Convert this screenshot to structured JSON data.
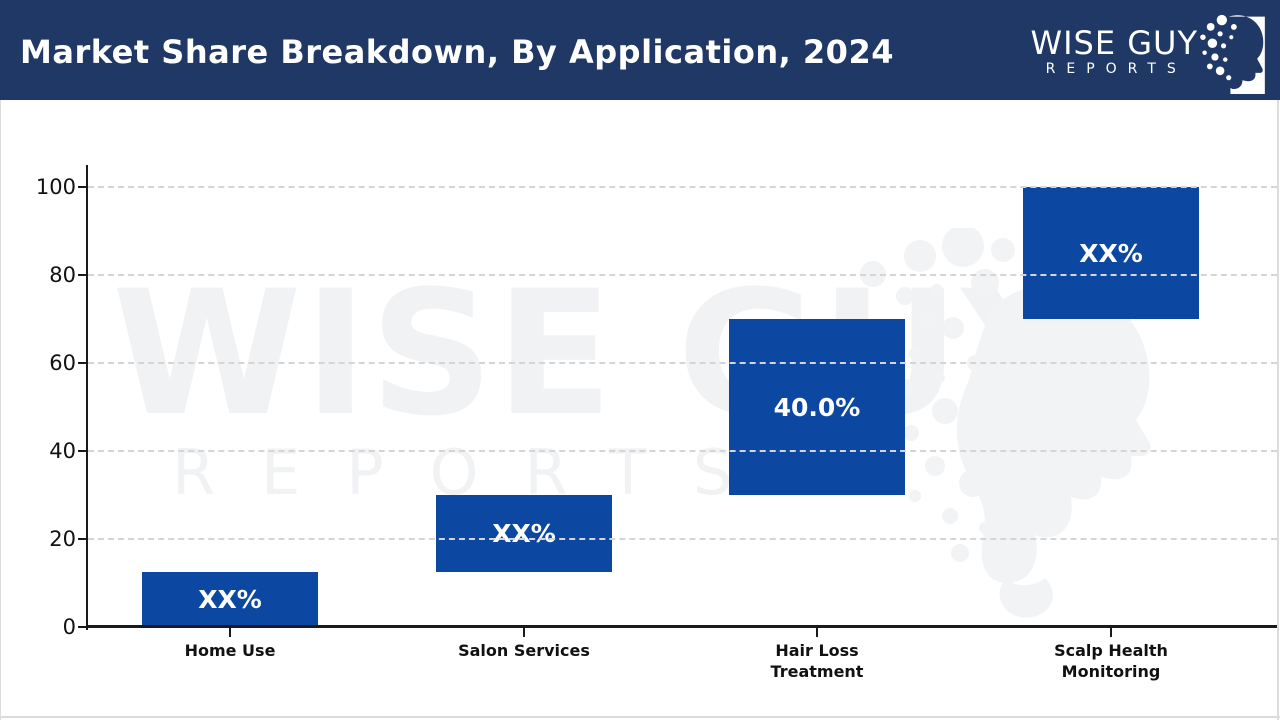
{
  "header": {
    "title": "Market Share Breakdown, By Application, 2024",
    "logo": {
      "wordmark": "WISE GUY",
      "reports": "REPORTS"
    }
  },
  "watermark": {
    "wordmark": "WISE GUY",
    "reports": "REPORTS"
  },
  "colors": {
    "header_bg": "#1F3866",
    "bar": "#0C47A2",
    "gridline": "#d5d5d5",
    "axis": "#1a1a1a",
    "bar_label_text": "#ffffff",
    "title_text": "#ffffff",
    "watermark": "#f1f2f4",
    "frame_border": "#dcdcdc"
  },
  "chart_data": {
    "type": "bar",
    "subtype": "floating-waterfall",
    "title": "Market Share Breakdown, By Application, 2024",
    "categories": [
      "Home Use",
      "Salon Services",
      "Hair Loss\nTreatment",
      "Scalp Health\nMonitoring"
    ],
    "series": [
      {
        "name": "Market Share",
        "segments": [
          {
            "category": "Home Use",
            "start": 0,
            "end": 12.5,
            "label": "XX%"
          },
          {
            "category": "Salon Services",
            "start": 12.5,
            "end": 30,
            "label": "XX%"
          },
          {
            "category": "Hair Loss Treatment",
            "start": 30,
            "end": 70,
            "label": "40.0%"
          },
          {
            "category": "Scalp Health Monitoring",
            "start": 70,
            "end": 100,
            "label": "XX%"
          }
        ]
      }
    ],
    "xlabel": "",
    "ylabel": "",
    "yticks": [
      0,
      20,
      40,
      60,
      80,
      100
    ],
    "ylim": [
      0,
      105
    ],
    "grid": "horizontal-dashed",
    "legend": "none"
  }
}
